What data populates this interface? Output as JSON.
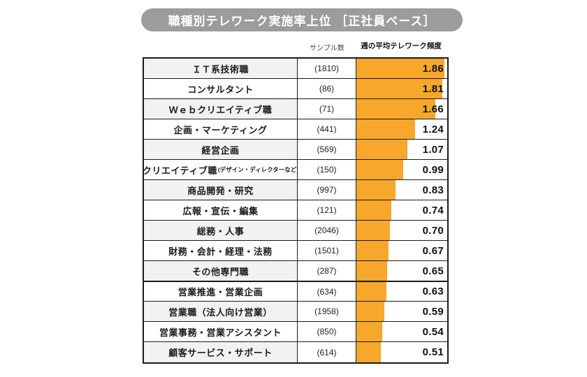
{
  "title": "職種別テレワーク実施率上位 ［正社員ベース］",
  "column_headers": {
    "sample": "サンプル数",
    "frequency": "週の平均テレワーク頻度"
  },
  "colors": {
    "bar": "#f6a72c",
    "title_bg": "#9c9c9c",
    "row_alt": "#f2f2f2",
    "border": "#1a1a1a"
  },
  "chart_data": {
    "type": "bar",
    "orientation": "horizontal",
    "title": "職種別テレワーク実施率上位 ［正社員ベース］",
    "value_axis_label": "週の平均テレワーク頻度",
    "sample_axis_label": "サンプル数",
    "xlim": [
      0,
      1.9
    ],
    "rows": [
      {
        "label": "ＩＴ系技術職",
        "note": "",
        "sample": "(1810)",
        "value": 1.86,
        "value_label": "1.86"
      },
      {
        "label": "コンサルタント",
        "note": "",
        "sample": "(86)",
        "value": 1.81,
        "value_label": "1.81"
      },
      {
        "label": "Ｗｅｂクリエイティブ職",
        "note": "",
        "sample": "(71)",
        "value": 1.66,
        "value_label": "1.66"
      },
      {
        "label": "企画・マーケティング",
        "note": "",
        "sample": "(441)",
        "value": 1.24,
        "value_label": "1.24"
      },
      {
        "label": "経営企画",
        "note": "",
        "sample": "(569)",
        "value": 1.07,
        "value_label": "1.07"
      },
      {
        "label": "クリエイティブ職",
        "note": "(デザイン・ディレクターなど)",
        "sample": "(150)",
        "value": 0.99,
        "value_label": "0.99"
      },
      {
        "label": "商品開発・研究",
        "note": "",
        "sample": "(997)",
        "value": 0.83,
        "value_label": "0.83"
      },
      {
        "label": "広報・宣伝・編集",
        "note": "",
        "sample": "(121)",
        "value": 0.74,
        "value_label": "0.74"
      },
      {
        "label": "総務・人事",
        "note": "",
        "sample": "(2046)",
        "value": 0.7,
        "value_label": "0.70"
      },
      {
        "label": "財務・会計・経理・法務",
        "note": "",
        "sample": "(1501)",
        "value": 0.67,
        "value_label": "0.67"
      },
      {
        "label": "その他専門職",
        "note": "",
        "sample": "(287)",
        "value": 0.65,
        "value_label": "0.65"
      },
      {
        "label": "営業推進・営業企画",
        "note": "",
        "sample": "(634)",
        "value": 0.63,
        "value_label": "0.63",
        "thick_top": true
      },
      {
        "label": "営業職（法人向け営業）",
        "note": "",
        "sample": "(1958)",
        "value": 0.59,
        "value_label": "0.59"
      },
      {
        "label": "営業事務・営業アシスタント",
        "note": "",
        "sample": "(850)",
        "value": 0.54,
        "value_label": "0.54"
      },
      {
        "label": "顧客サービス・サポート",
        "note": "",
        "sample": "(614)",
        "value": 0.51,
        "value_label": "0.51"
      }
    ]
  }
}
